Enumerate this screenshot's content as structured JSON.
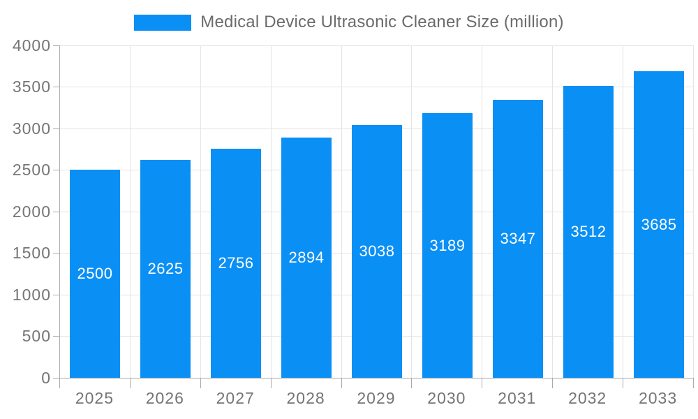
{
  "chart_data": {
    "type": "bar",
    "title": "Medical Device Ultrasonic Cleaner Size (million)",
    "legend_label": "Medical Device Ultrasonic Cleaner Size (million)",
    "legend_position": "top",
    "categories": [
      "2025",
      "2026",
      "2027",
      "2028",
      "2029",
      "2030",
      "2031",
      "2032",
      "2033"
    ],
    "values": [
      2500,
      2625,
      2756,
      2894,
      3038,
      3189,
      3347,
      3512,
      3685
    ],
    "xlabel": "",
    "ylabel": "",
    "ylim": [
      0,
      4000
    ],
    "yticks": [
      0,
      500,
      1000,
      1500,
      2000,
      2500,
      3000,
      3500,
      4000
    ],
    "grid": true,
    "colors": {
      "bar": "#0a8ff5",
      "bar_label": "#ffffff",
      "grid": "#e4e4e4",
      "axis_line": "#aaaaaa",
      "axis_text": "#757575",
      "legend_text": "#6b6b6b",
      "background": "#ffffff"
    }
  }
}
